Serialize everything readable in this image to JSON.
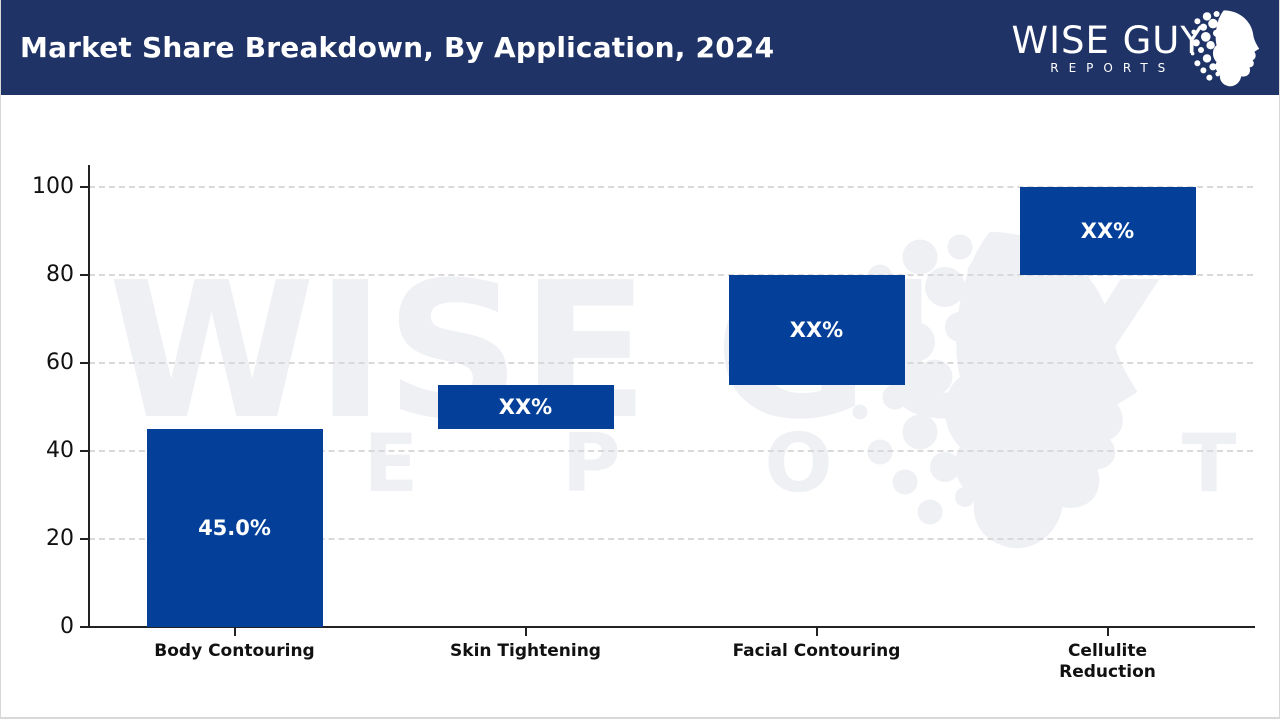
{
  "header": {
    "title": "Market Share Breakdown, By Application, 2024",
    "logo": {
      "line1": "WISE GUY",
      "line2": "REPORTS"
    }
  },
  "watermark": {
    "line1": "WISE GUY",
    "line2": "R E P O R T S"
  },
  "colors": {
    "header_bg": "#1f3366",
    "title_text": "#ffffff",
    "logo_text": "#ffffff",
    "bar_fill": "#04409a",
    "bar_label": "#ffffff",
    "axis": "#222222",
    "tick_label": "#111111",
    "gridline": "#d9d9d9",
    "watermark": "#eef0f4",
    "frame_border": "#d8d8d8"
  },
  "chart_data": {
    "type": "bar",
    "variant": "waterfall",
    "title": "Market Share Breakdown, By Application, 2024",
    "categories": [
      "Body Contouring",
      "Skin Tightening",
      "Facial Contouring",
      "Cellulite\nReduction"
    ],
    "segments": [
      {
        "category": "Body Contouring",
        "start": 0,
        "end": 45,
        "size": 45,
        "label": "45.0%"
      },
      {
        "category": "Skin Tightening",
        "start": 45,
        "end": 55,
        "size": 10,
        "label": "XX%"
      },
      {
        "category": "Facial Contouring",
        "start": 55,
        "end": 80,
        "size": 25,
        "label": "XX%"
      },
      {
        "category": "Cellulite Reduction",
        "start": 80,
        "end": 100,
        "size": 20,
        "label": "XX%"
      }
    ],
    "yticks": [
      0,
      20,
      40,
      60,
      80,
      100
    ],
    "ylim": [
      0,
      105
    ],
    "xlabel": "",
    "ylabel": "",
    "grid": {
      "horizontal": true,
      "style": "dashed"
    },
    "legend": "none"
  }
}
